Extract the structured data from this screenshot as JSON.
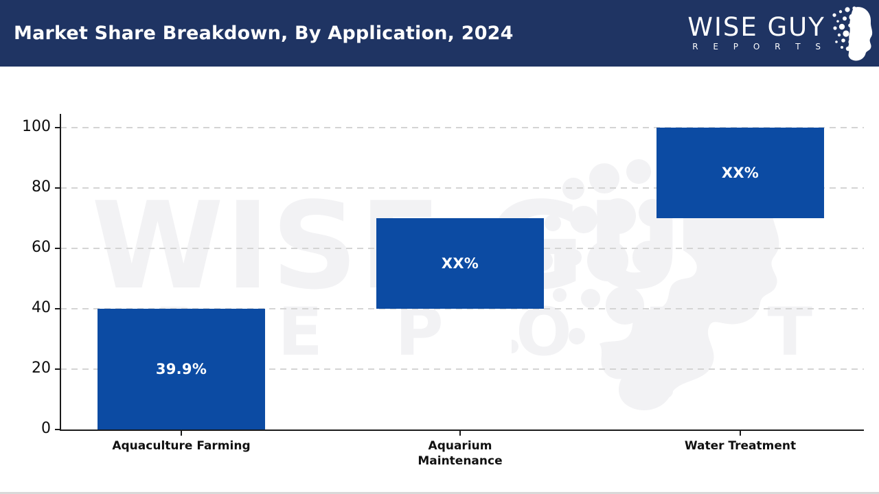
{
  "header": {
    "title": "Market Share Breakdown, By Application, 2024",
    "logo": {
      "brand_line1": "WISE GUY",
      "brand_line2": "R E P O R T S"
    }
  },
  "watermark": {
    "line1": "WISE GUY",
    "line2": "R E P O R T S"
  },
  "chart_data": {
    "type": "bar",
    "variant": "floating-segment-bars (stacked market-share breakdown)",
    "title": "Market Share Breakdown, By Application, 2024",
    "categories": [
      "Aquaculture Farming",
      "Aquarium Maintenance",
      "Water Treatment"
    ],
    "segments": [
      {
        "category": "Aquaculture Farming",
        "start": 0,
        "end": 39.9,
        "label": "39.9%"
      },
      {
        "category": "Aquarium Maintenance",
        "start": 40,
        "end": 70,
        "label": "XX%"
      },
      {
        "category": "Water Treatment",
        "start": 70,
        "end": 100,
        "label": "XX%"
      }
    ],
    "yticks": [
      0,
      20,
      40,
      60,
      80,
      100
    ],
    "ylim": [
      0,
      104
    ],
    "xlabel": "",
    "ylabel": "",
    "grid": "horizontal-dashed",
    "legend": "none",
    "colors": {
      "bar": "#0c4ba3",
      "bar_label": "#ffffff",
      "header_bg": "#1f3463",
      "gridline": "#d4d4d4",
      "axis": "#1a1a1a",
      "watermark": "#f2f2f4"
    }
  }
}
